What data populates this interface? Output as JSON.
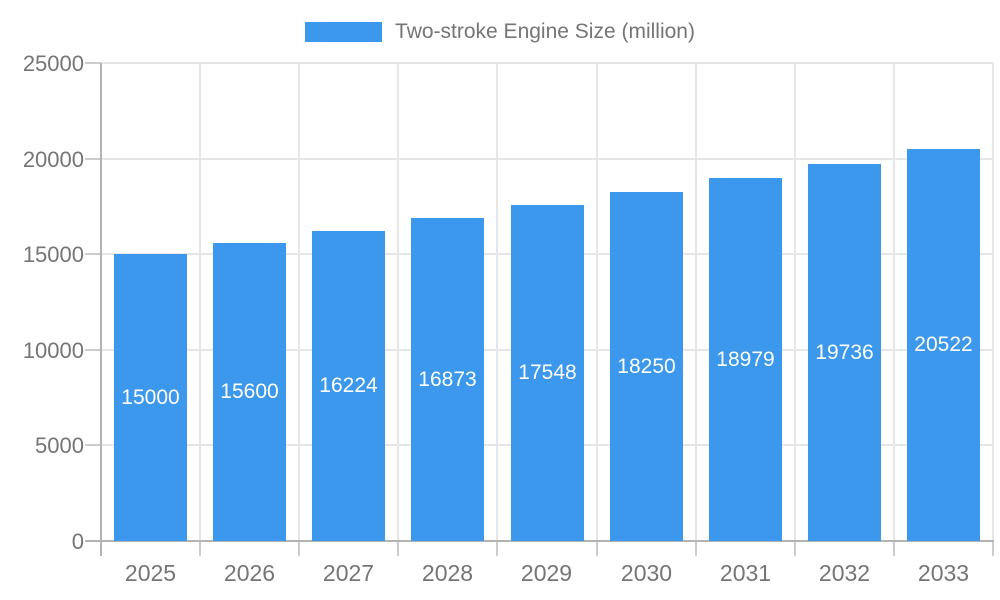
{
  "legend": {
    "label": "Two-stroke Engine Size (million)"
  },
  "chart_data": {
    "type": "bar",
    "title": "",
    "categories": [
      "2025",
      "2026",
      "2027",
      "2028",
      "2029",
      "2030",
      "2031",
      "2032",
      "2033"
    ],
    "series": [
      {
        "name": "Two-stroke Engine Size (million)",
        "values": [
          15000,
          15600,
          16224,
          16873,
          17548,
          18250,
          18979,
          19736,
          20522
        ]
      }
    ],
    "xlabel": "",
    "ylabel": "",
    "ylim": [
      0,
      25000
    ],
    "yticks": [
      0,
      5000,
      10000,
      15000,
      20000,
      25000
    ],
    "grid": true,
    "legend_position": "top",
    "bar_color": "#3b98ec",
    "bar_label_color": "#ffffff",
    "axis_text_color": "#757575",
    "grid_color": "#e6e6e6",
    "axis_line_color": "#b3b3b3",
    "tick_color": "#cccccc",
    "background_color": "#ffffff"
  }
}
